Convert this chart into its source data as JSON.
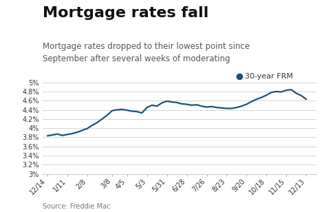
{
  "title": "Mortgage rates fall",
  "subtitle": "Mortgage rates dropped to their lowest point since\nSeptember after several weeks of moderating",
  "source": "Source: Freddie Mac",
  "legend_label": "30-year FRM",
  "line_color": "#1a5276",
  "background_color": "#ffffff",
  "x_labels": [
    "12/14",
    "1/11",
    "2/8",
    "3/8",
    "4/5",
    "5/3",
    "5/31",
    "6/28",
    "7/26",
    "8/23",
    "9/20",
    "10/18",
    "11/15",
    "12/13"
  ],
  "x_positions": [
    0,
    4,
    8,
    13,
    16,
    20,
    24,
    28,
    32,
    36,
    40,
    44,
    48,
    52
  ],
  "y_raw": [
    3.83,
    3.85,
    3.87,
    3.84,
    3.86,
    3.88,
    3.91,
    3.95,
    3.99,
    4.06,
    4.12,
    4.2,
    4.28,
    4.38,
    4.4,
    4.41,
    4.39,
    4.37,
    4.36,
    4.33,
    4.45,
    4.5,
    4.48,
    4.55,
    4.59,
    4.57,
    4.56,
    4.53,
    4.52,
    4.5,
    4.51,
    4.48,
    4.46,
    4.47,
    4.45,
    4.44,
    4.43,
    4.43,
    4.45,
    4.48,
    4.52,
    4.58,
    4.63,
    4.67,
    4.72,
    4.78,
    4.8,
    4.79,
    4.83,
    4.84,
    4.76,
    4.71,
    4.63
  ],
  "ylim": [
    3.0,
    5.05
  ],
  "yticks": [
    3.0,
    3.2,
    3.4,
    3.6,
    3.8,
    4.0,
    4.2,
    4.4,
    4.6,
    4.8,
    5.0
  ],
  "ytick_labels": [
    "3%",
    "3.2%",
    "3.4%",
    "3.6%",
    "3.8%",
    "4%",
    "4.2%",
    "4.4%",
    "4.6%",
    "4.8%",
    "5%"
  ],
  "title_fontsize": 16,
  "subtitle_fontsize": 8.5,
  "axis_fontsize": 7,
  "legend_fontsize": 8,
  "source_fontsize": 7
}
